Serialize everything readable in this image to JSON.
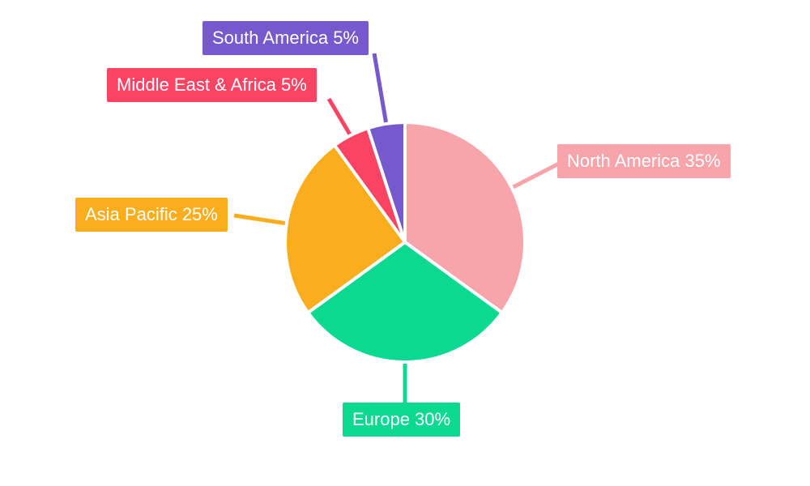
{
  "page": {
    "background_color": "#ffffff",
    "text_color_on_labels": "#ffffff"
  },
  "chart_data": {
    "type": "pie",
    "title": "",
    "unit": "%",
    "start_angle": "12-o-clock",
    "direction": "clockwise",
    "legend": "none",
    "label_style": "callout-boxes-with-leader-lines",
    "slice_gap_color": "#ffffff",
    "slices": [
      {
        "label": "North America",
        "value": 35,
        "display": "North America 35%",
        "color": "#f8a4ab"
      },
      {
        "label": "Europe",
        "value": 30,
        "display": "Europe 30%",
        "color": "#0bd991"
      },
      {
        "label": "Asia Pacific",
        "value": 25,
        "display": "Asia Pacific 25%",
        "color": "#fbae1d"
      },
      {
        "label": "Middle East & Africa",
        "value": 5,
        "display": "Middle East & Africa 5%",
        "color": "#fb4463"
      },
      {
        "label": "South America",
        "value": 5,
        "display": "South America 5%",
        "color": "#7659cd"
      }
    ]
  }
}
